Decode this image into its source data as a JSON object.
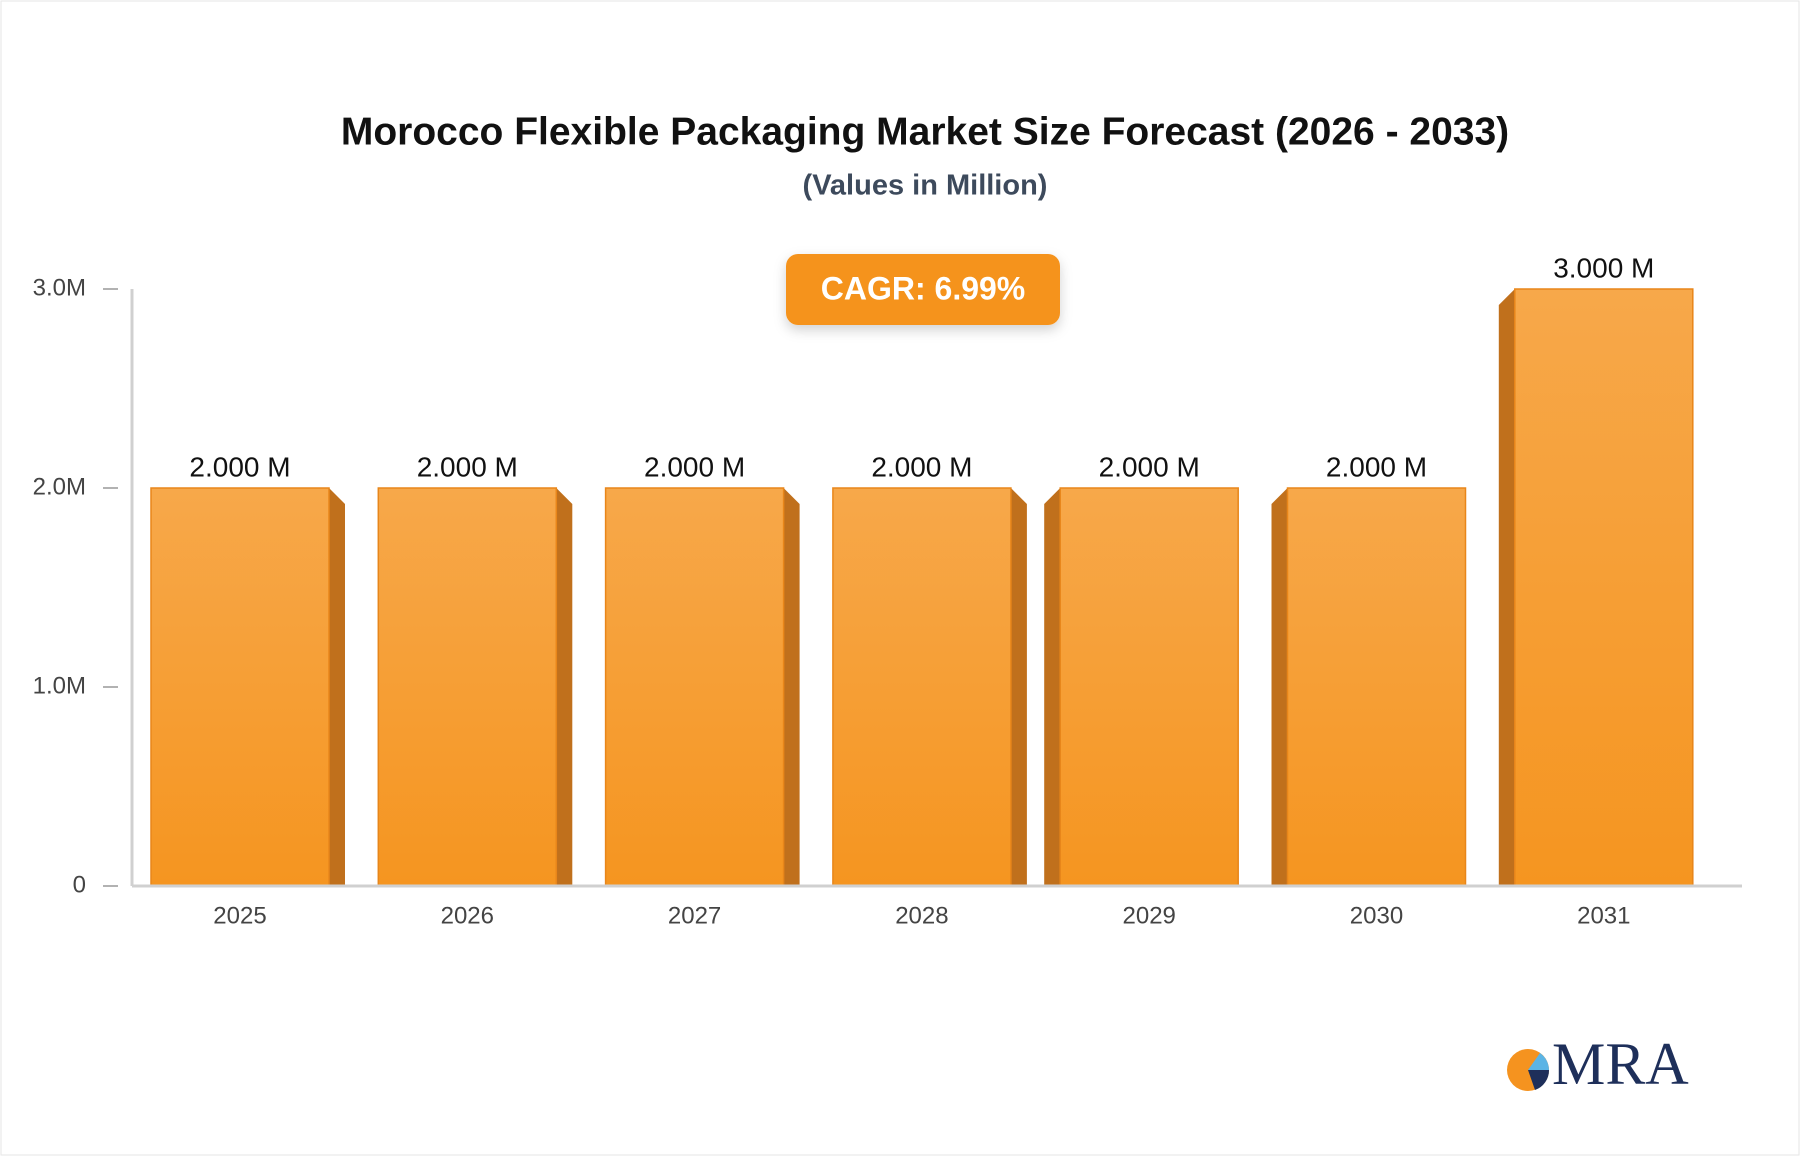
{
  "chart_data": {
    "type": "bar",
    "title": "Morocco Flexible Packaging Market Size Forecast (2026 - 2033)",
    "subtitle": "(Values in Million)",
    "annotation": "CAGR: 6.99%",
    "watermark": "MRA",
    "categories": [
      "2025",
      "2026",
      "2027",
      "2028",
      "2029",
      "2030",
      "2031"
    ],
    "values": [
      2000000,
      2000000,
      2000000,
      2000000,
      2000000,
      2000000,
      3000000
    ],
    "value_labels": [
      "2.000 M",
      "2.000 M",
      "2.000 M",
      "2.000 M",
      "2.000 M",
      "2.000 M",
      "3.000 M"
    ],
    "color": "#f59a2c",
    "ylim": [
      0,
      3000000
    ],
    "yticks": [
      0,
      {
        "value": 1000000,
        "label": "1.0M"
      },
      {
        "value": 2000000,
        "label": "2.0M"
      },
      {
        "value": 3000000,
        "label": "3.0M"
      }
    ],
    "grid": false
  }
}
